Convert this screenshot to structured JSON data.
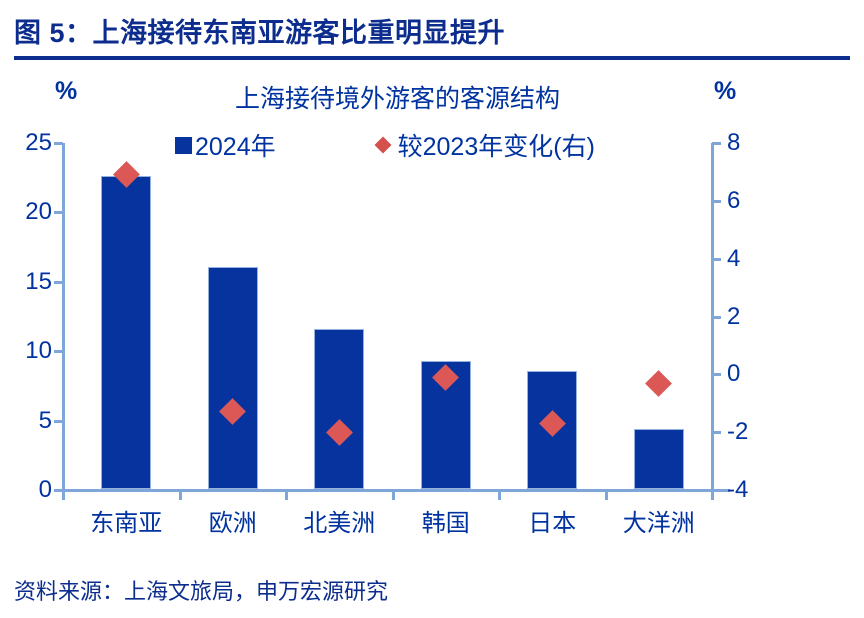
{
  "header": {
    "title": "图 5：上海接待东南亚游客比重明显提升"
  },
  "footer": {
    "source": "资料来源：上海文旅局，申万宏源研究"
  },
  "colors": {
    "bar": "#06339E",
    "marker": "#DB5856",
    "legend_marker": "#D4504D",
    "axis": "#7FA6D8",
    "chart_text": "#0033A0",
    "header_text": "#0C2D8E"
  },
  "chart_data": {
    "type": "bar",
    "title": "上海接待境外游客的客源结构",
    "categories": [
      "东南亚",
      "欧洲",
      "北美洲",
      "韩国",
      "日本",
      "大洋洲"
    ],
    "series": [
      {
        "name": "2024年",
        "type": "bar",
        "axis": "left",
        "values": [
          22.6,
          16.1,
          11.6,
          9.3,
          8.6,
          4.4
        ]
      },
      {
        "name": "较2023年变化(右)",
        "type": "scatter",
        "axis": "right",
        "values": [
          6.9,
          -1.3,
          -2.0,
          -0.1,
          -1.7,
          -0.3
        ]
      }
    ],
    "left_axis": {
      "label": "%",
      "ticks": [
        0,
        5,
        10,
        15,
        20,
        25
      ],
      "range": [
        0,
        25
      ]
    },
    "right_axis": {
      "label": "%",
      "ticks": [
        -4,
        -2,
        0,
        2,
        4,
        6,
        8
      ],
      "range": [
        -4,
        8
      ]
    },
    "legend_position": "top",
    "grid": false
  }
}
